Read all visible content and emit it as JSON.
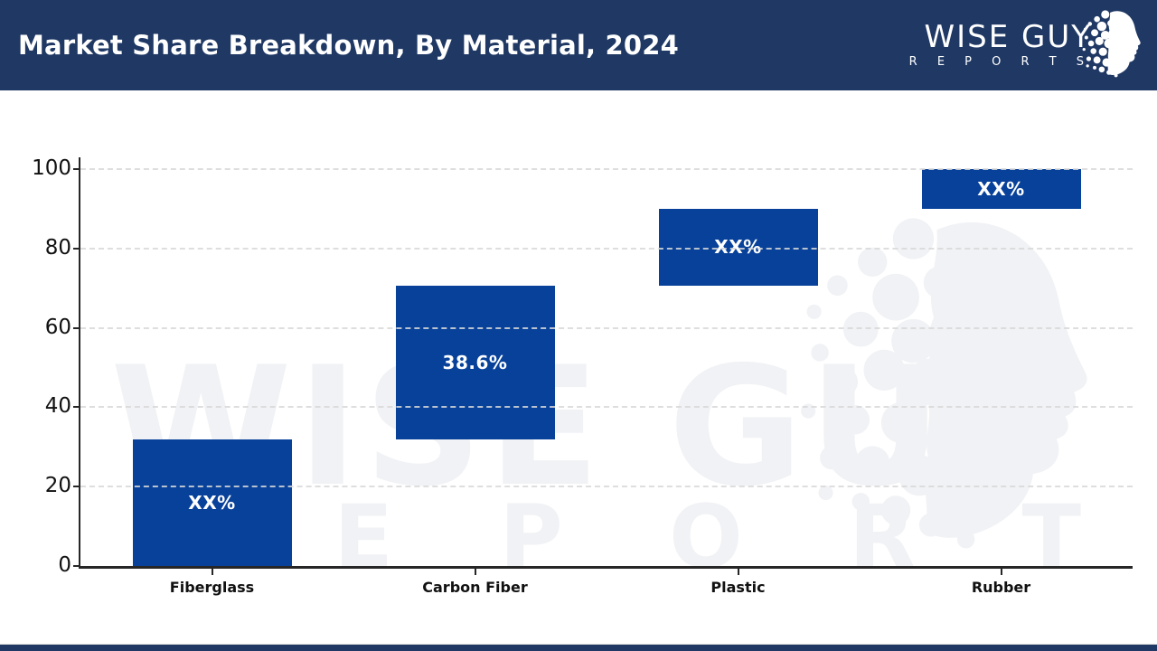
{
  "header": {
    "title": "Market Share Breakdown, By Material, 2024",
    "logo": {
      "line1": "WISE GUY",
      "line2": "R E P O R T S"
    }
  },
  "watermark": {
    "line1": "WISE GUY",
    "line2": "R E P O R T S"
  },
  "colors": {
    "header_bg": "#1f3864",
    "bar": "#08419a",
    "grid": "#d9d9d9",
    "axis": "#262626",
    "watermark": "#f1f2f5"
  },
  "chart_data": {
    "type": "bar",
    "subtype": "waterfall",
    "title": "Market Share Breakdown, By Material, 2024",
    "xlabel": "",
    "ylabel": "",
    "categories": [
      "Fiberglass",
      "Carbon Fiber",
      "Plastic",
      "Rubber"
    ],
    "bars": [
      {
        "category": "Fiberglass",
        "start": 0,
        "end": 32,
        "value": 32,
        "label": "XX%"
      },
      {
        "category": "Carbon Fiber",
        "start": 32,
        "end": 70.6,
        "value": 38.6,
        "label": "38.6%"
      },
      {
        "category": "Plastic",
        "start": 70.6,
        "end": 90,
        "value": 19.4,
        "label": "XX%"
      },
      {
        "category": "Rubber",
        "start": 90,
        "end": 100,
        "value": 10,
        "label": "XX%"
      }
    ],
    "yticks": [
      0,
      20,
      40,
      60,
      80,
      100
    ],
    "ylim": [
      0,
      103
    ],
    "grid": "horizontal-dashed",
    "legend": "none",
    "bar_color": "#08419a",
    "bar_label_color": "#ffffff"
  }
}
